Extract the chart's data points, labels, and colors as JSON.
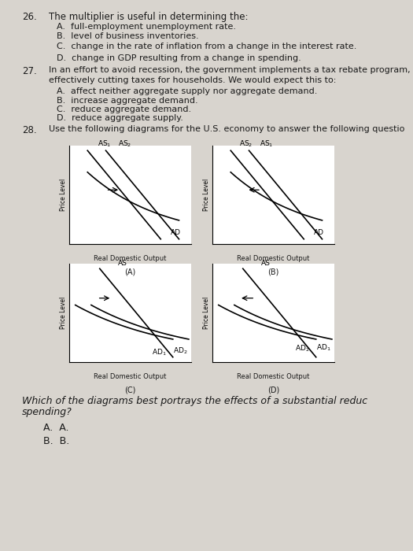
{
  "bg_color": "#d8d4ce",
  "paper_color": "#f0ede8",
  "text_color": "#1a1a1a",
  "q26_number": "26.",
  "q26_stem": "The multiplier is useful in determining the:",
  "q26_options": [
    "A.  full-employment unemployment rate.",
    "B.  level of business inventories.",
    "C.  change in the rate of inflation from a change in the interest rate.",
    "D.  change in GDP resulting from a change in spending."
  ],
  "q27_number": "27.",
  "q27_line1": "In an effort to avoid recession, the government implements a tax rebate program,",
  "q27_line2": "effectively cutting taxes for households. We would expect this to:",
  "q27_options": [
    "A.  affect neither aggregate supply nor aggregate demand.",
    "B.  increase aggregate demand.",
    "C.  reduce aggregate demand.",
    "D.  reduce aggregate supply."
  ],
  "q28_number": "28.",
  "q28_stem": "Use the following diagrams for the U.S. economy to answer the following questio",
  "q28_subline1": "Which of the diagrams best portrays the effects of a substantial reduc",
  "q28_subline2": "spending?",
  "q28_answers": [
    "A.  A.",
    "B.  B."
  ]
}
